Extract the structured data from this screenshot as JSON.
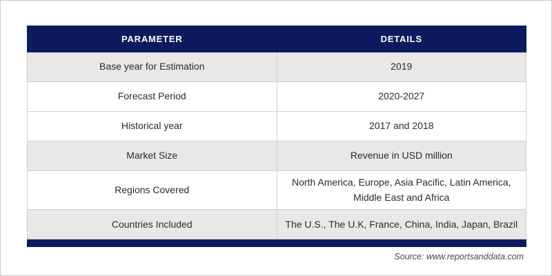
{
  "chart_data": {
    "type": "table",
    "columns": [
      "PARAMETER",
      "DETAILS"
    ],
    "rows": [
      [
        "Base year for Estimation",
        "2019"
      ],
      [
        "Forecast Period",
        "2020-2027"
      ],
      [
        "Historical year",
        "2017 and 2018"
      ],
      [
        "Market Size",
        "Revenue in USD million"
      ],
      [
        "Regions Covered",
        "North America, Europe, Asia Pacific, Latin America, Middle East and Africa"
      ],
      [
        "Countries Included",
        "The U.S., The U.K, France, China, India, Japan, Brazil"
      ]
    ]
  },
  "footer": {
    "source": "Source: www.reportsanddata.com"
  },
  "colors": {
    "header_bg": "#0d1b5e",
    "shaded_row_bg": "#e8e8e9",
    "accent_bar": "#0d1b5e"
  }
}
